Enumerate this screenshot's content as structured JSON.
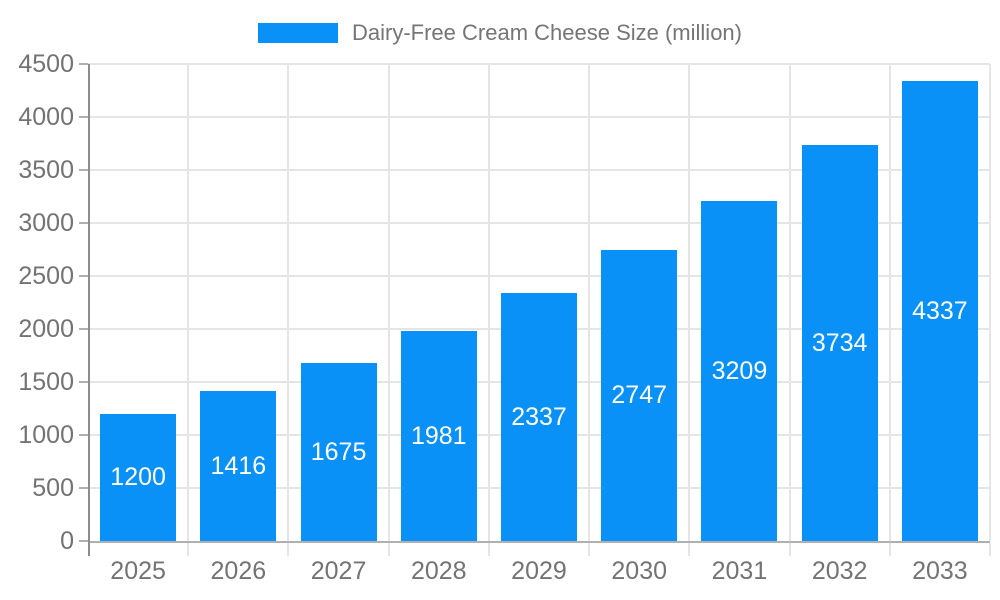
{
  "legend": {
    "label": "Dairy-Free Cream Cheese Size (million)"
  },
  "chart_data": {
    "type": "bar",
    "title": "Dairy-Free Cream Cheese Size (million)",
    "categories": [
      "2025",
      "2026",
      "2027",
      "2028",
      "2029",
      "2030",
      "2031",
      "2032",
      "2033"
    ],
    "values": [
      1200,
      1416,
      1675,
      1981,
      2337,
      2747,
      3209,
      3734,
      4337
    ],
    "xlabel": "",
    "ylabel": "",
    "ylim": [
      0,
      4500
    ],
    "y_ticks": [
      0,
      500,
      1000,
      1500,
      2000,
      2500,
      3000,
      3500,
      4000,
      4500
    ],
    "grid": true,
    "legend_position": "top",
    "data_labels_position": "inside-center"
  },
  "colors": {
    "bar": "#0a91f7",
    "bar_label_text": "#ffffff",
    "grid": "#e5e5e5",
    "y_axis": "#8c8c8c",
    "x_axis": "#b0b0b0",
    "tick": "#b0b0b0",
    "axis_text": "#737373",
    "legend_text": "#757575",
    "background": "#ffffff"
  }
}
